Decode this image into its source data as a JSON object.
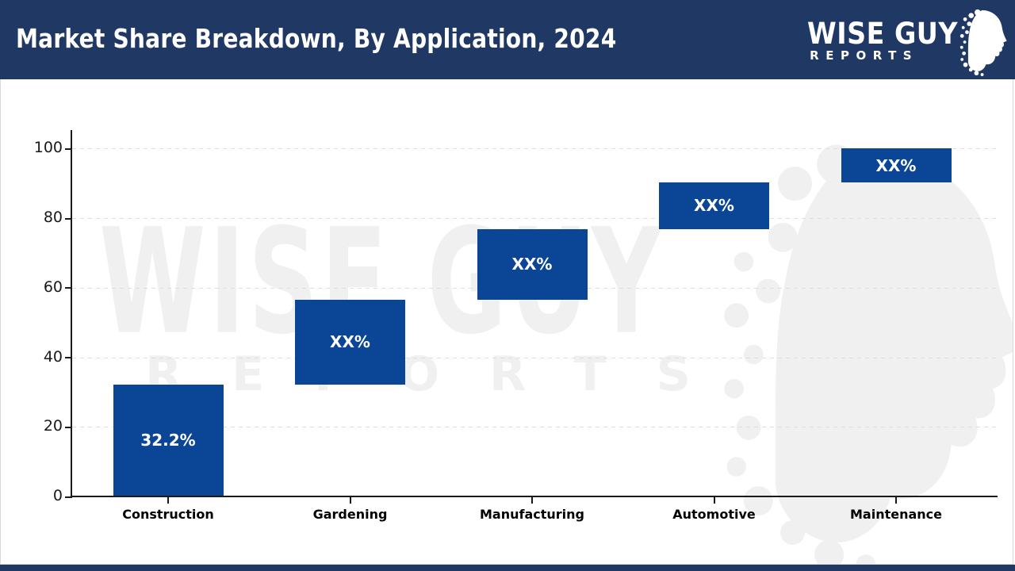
{
  "header": {
    "title": "Market Share Breakdown, By Application, 2024",
    "logo": {
      "primary": "WISE GUY",
      "secondary": "REPORTS"
    }
  },
  "watermark": {
    "primary": "WISE GUY",
    "secondary": "REPORTS"
  },
  "colors": {
    "header_bg": "#1f3864",
    "footer_bg": "#1f3864",
    "bar": "#0b4596",
    "bar_label": "#ffffff",
    "axis": "#1a1a1a",
    "grid": "#dddddd",
    "watermark": "#f0f0f0"
  },
  "chart_data": {
    "type": "bar",
    "subtype": "waterfall",
    "title": "Market Share Breakdown, By Application, 2024",
    "categories": [
      "Construction",
      "Gardening",
      "Manufacturing",
      "Automotive",
      "Maintenance"
    ],
    "segments": [
      {
        "category": "Construction",
        "start": 0,
        "end": 32.2,
        "value": 32.2,
        "label": "32.2%"
      },
      {
        "category": "Gardening",
        "start": 32.2,
        "end": 56.6,
        "value": 24.4,
        "label": "XX%"
      },
      {
        "category": "Manufacturing",
        "start": 56.6,
        "end": 76.9,
        "value": 20.3,
        "label": "XX%"
      },
      {
        "category": "Automotive",
        "start": 76.9,
        "end": 90.3,
        "value": 13.4,
        "label": "XX%"
      },
      {
        "category": "Maintenance",
        "start": 90.3,
        "end": 100.0,
        "value": 9.7,
        "label": "XX%"
      }
    ],
    "xlabel": "",
    "ylabel": "",
    "yticks": [
      0,
      20,
      40,
      60,
      80,
      100
    ],
    "ylim": [
      0,
      105
    ],
    "grid": "horizontal-dashed",
    "legend": "none"
  }
}
